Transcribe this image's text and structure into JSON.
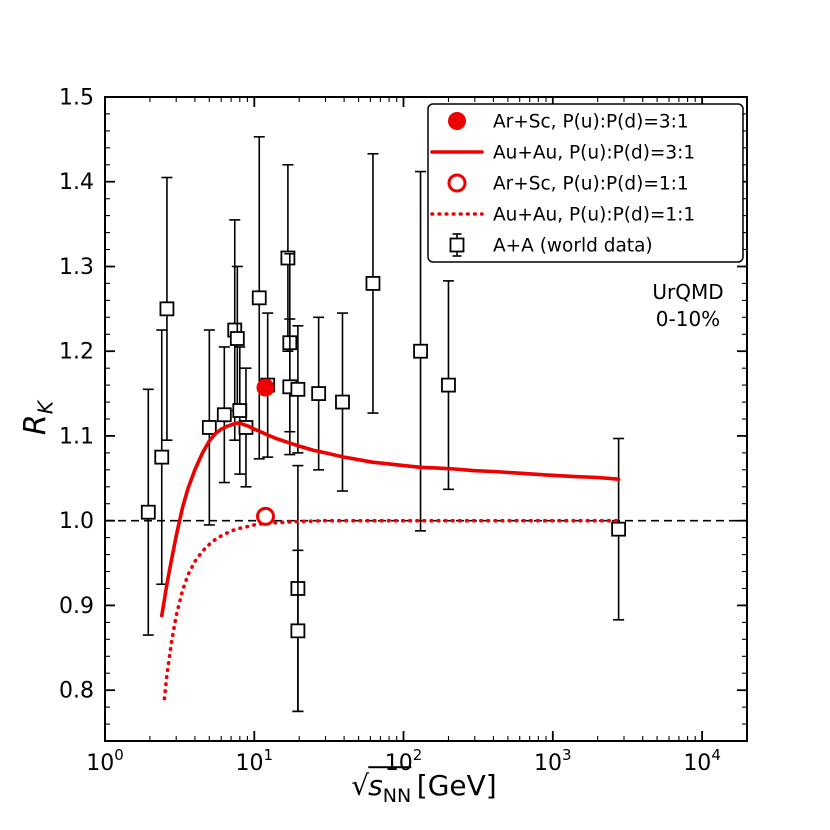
{
  "chart_data": {
    "type": "line",
    "title": "",
    "annotation": {
      "line1": "UrQMD",
      "line2": "0-10%"
    },
    "x_axis": {
      "scale": "log",
      "min": 1,
      "max": 20000,
      "label": {
        "radical": "√",
        "symbol": "s",
        "subscript": "NN",
        "unit": "[GeV]"
      },
      "major_tick_exponents": [
        0,
        1,
        2,
        3,
        4
      ]
    },
    "y_axis": {
      "min": 0.74,
      "max": 1.5,
      "label": {
        "symbol": "R",
        "subscript": "K"
      },
      "major_ticks": [
        0.8,
        0.9,
        1.0,
        1.1,
        1.2,
        1.3,
        1.4,
        1.5
      ],
      "minor_step": 0.02
    },
    "reference_line": {
      "y": 1.0,
      "color": "#000000",
      "style": "dashed"
    },
    "colors": {
      "accent": "#ee0000",
      "data": "#000000",
      "background": "#ffffff"
    },
    "legend_position": "upper right",
    "grid": false,
    "series": [
      {
        "name": "Ar+Sc,  P(u):P(d)=3:1",
        "type": "scatter",
        "marker": "filled-circle",
        "color": "#ee0000",
        "points": [
          [
            11.9,
            1.157
          ]
        ]
      },
      {
        "name": "Au+Au, P(u):P(d)=3:1",
        "type": "line",
        "line_style": "solid",
        "color": "#ee0000",
        "points": [
          [
            2.4,
            0.888
          ],
          [
            2.6,
            0.925
          ],
          [
            2.8,
            0.955
          ],
          [
            3.0,
            0.982
          ],
          [
            3.3,
            1.015
          ],
          [
            3.6,
            1.038
          ],
          [
            4.0,
            1.06
          ],
          [
            4.5,
            1.08
          ],
          [
            5.0,
            1.094
          ],
          [
            5.5,
            1.103
          ],
          [
            6.0,
            1.108
          ],
          [
            6.5,
            1.111
          ],
          [
            7.0,
            1.113
          ],
          [
            7.5,
            1.115
          ],
          [
            8.0,
            1.115
          ],
          [
            9.0,
            1.112
          ],
          [
            10,
            1.108
          ],
          [
            11,
            1.105
          ],
          [
            12,
            1.102
          ],
          [
            14,
            1.097
          ],
          [
            17,
            1.092
          ],
          [
            20,
            1.088
          ],
          [
            25,
            1.083
          ],
          [
            30,
            1.08
          ],
          [
            40,
            1.075
          ],
          [
            50,
            1.072
          ],
          [
            62,
            1.069
          ],
          [
            80,
            1.067
          ],
          [
            100,
            1.065
          ],
          [
            130,
            1.063
          ],
          [
            170,
            1.062
          ],
          [
            220,
            1.061
          ],
          [
            300,
            1.059
          ],
          [
            400,
            1.058
          ],
          [
            600,
            1.056
          ],
          [
            900,
            1.054
          ],
          [
            1400,
            1.052
          ],
          [
            2000,
            1.051
          ],
          [
            2760,
            1.049
          ]
        ]
      },
      {
        "name": "Ar+Sc,  P(u):P(d)=1:1",
        "type": "scatter",
        "marker": "open-circle",
        "color": "#ee0000",
        "points": [
          [
            11.9,
            1.005
          ]
        ]
      },
      {
        "name": "Au+Au, P(u):P(d)=1:1",
        "type": "line",
        "line_style": "dotted",
        "color": "#ee0000",
        "points": [
          [
            2.5,
            0.79
          ],
          [
            2.6,
            0.818
          ],
          [
            2.8,
            0.858
          ],
          [
            3.0,
            0.888
          ],
          [
            3.3,
            0.917
          ],
          [
            3.6,
            0.936
          ],
          [
            4.0,
            0.952
          ],
          [
            4.5,
            0.964
          ],
          [
            5.0,
            0.972
          ],
          [
            5.5,
            0.978
          ],
          [
            6.0,
            0.982
          ],
          [
            7.0,
            0.988
          ],
          [
            8.0,
            0.991
          ],
          [
            9.0,
            0.993
          ],
          [
            10,
            0.995
          ],
          [
            12,
            0.997
          ],
          [
            15,
            0.998
          ],
          [
            20,
            0.999
          ],
          [
            30,
            1.0
          ],
          [
            50,
            1.0
          ],
          [
            80,
            1.0
          ],
          [
            130,
            1.0
          ],
          [
            220,
            1.0
          ],
          [
            400,
            1.0
          ],
          [
            800,
            1.0
          ],
          [
            1500,
            1.0
          ],
          [
            2760,
            1.0
          ]
        ]
      },
      {
        "name": "A+A (world data)",
        "type": "scatter",
        "marker": "open-square",
        "error_bars": true,
        "color": "#000000",
        "points": [
          [
            1.95,
            1.01,
            0.145
          ],
          [
            2.4,
            1.075,
            0.15
          ],
          [
            2.6,
            1.25,
            0.155
          ],
          [
            5.0,
            1.11,
            0.115
          ],
          [
            6.3,
            1.125,
            0.08
          ],
          [
            7.4,
            1.225,
            0.13
          ],
          [
            7.7,
            1.215,
            0.085
          ],
          [
            8.0,
            1.13,
            0.075
          ],
          [
            8.8,
            1.11,
            0.07
          ],
          [
            10.8,
            1.263,
            0.19
          ],
          [
            12.3,
            1.16,
            0.085
          ],
          [
            16.8,
            1.31,
            0.11
          ],
          [
            17.3,
            1.21,
            0.105
          ],
          [
            17.3,
            1.158,
            0.08
          ],
          [
            19.6,
            1.155,
            0.075
          ],
          [
            19.6,
            0.92,
            0.145
          ],
          [
            19.6,
            0.87,
            0.095
          ],
          [
            27.0,
            1.15,
            0.09
          ],
          [
            39.0,
            1.14,
            0.105
          ],
          [
            62.4,
            1.28,
            0.153
          ],
          [
            130,
            1.2,
            0.212
          ],
          [
            200,
            1.16,
            0.123
          ],
          [
            2760,
            0.99,
            0.107
          ]
        ]
      }
    ]
  }
}
